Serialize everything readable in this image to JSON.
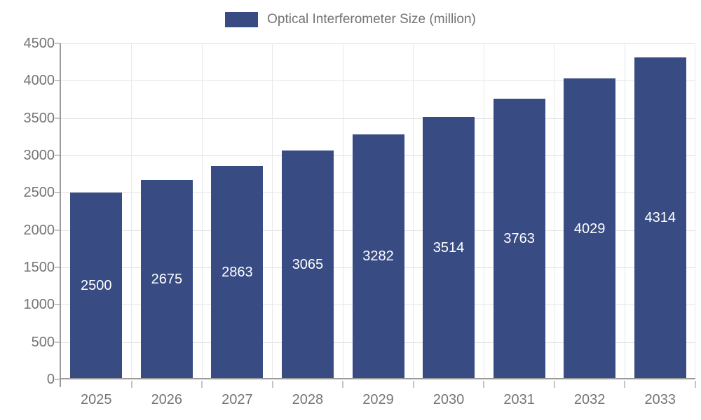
{
  "legend": {
    "label": "Optical Interferometer Size (million)"
  },
  "chart_data": {
    "type": "bar",
    "title": "Optical Interferometer Size (million)",
    "categories": [
      "2025",
      "2026",
      "2027",
      "2028",
      "2029",
      "2030",
      "2031",
      "2032",
      "2033"
    ],
    "series": [
      {
        "name": "Optical Interferometer Size (million)",
        "values": [
          2500,
          2675,
          2863,
          3065,
          3282,
          3514,
          3763,
          4029,
          4314
        ]
      }
    ],
    "value_labels": [
      2500,
      2675,
      2863,
      3065,
      3282,
      3514,
      3763,
      4029,
      4314
    ],
    "value_label_position": "inside-center",
    "xlabel": "",
    "ylabel": "",
    "ylim": [
      0,
      4500
    ],
    "yticks": [
      0,
      500,
      1000,
      1500,
      2000,
      2500,
      3000,
      3500,
      4000,
      4500
    ],
    "grid": true,
    "legend_position": "top-center",
    "colors": {
      "bar": "#384c83",
      "value_label": "#ffffff",
      "axis_line": "#9a9a9a",
      "gridline": "#e2e2e2",
      "boundary_line": "#e8e8e8",
      "tick": "#c4c4c4",
      "tick_label": "#757575",
      "legend_text": "#737373",
      "background": "#ffffff"
    }
  }
}
